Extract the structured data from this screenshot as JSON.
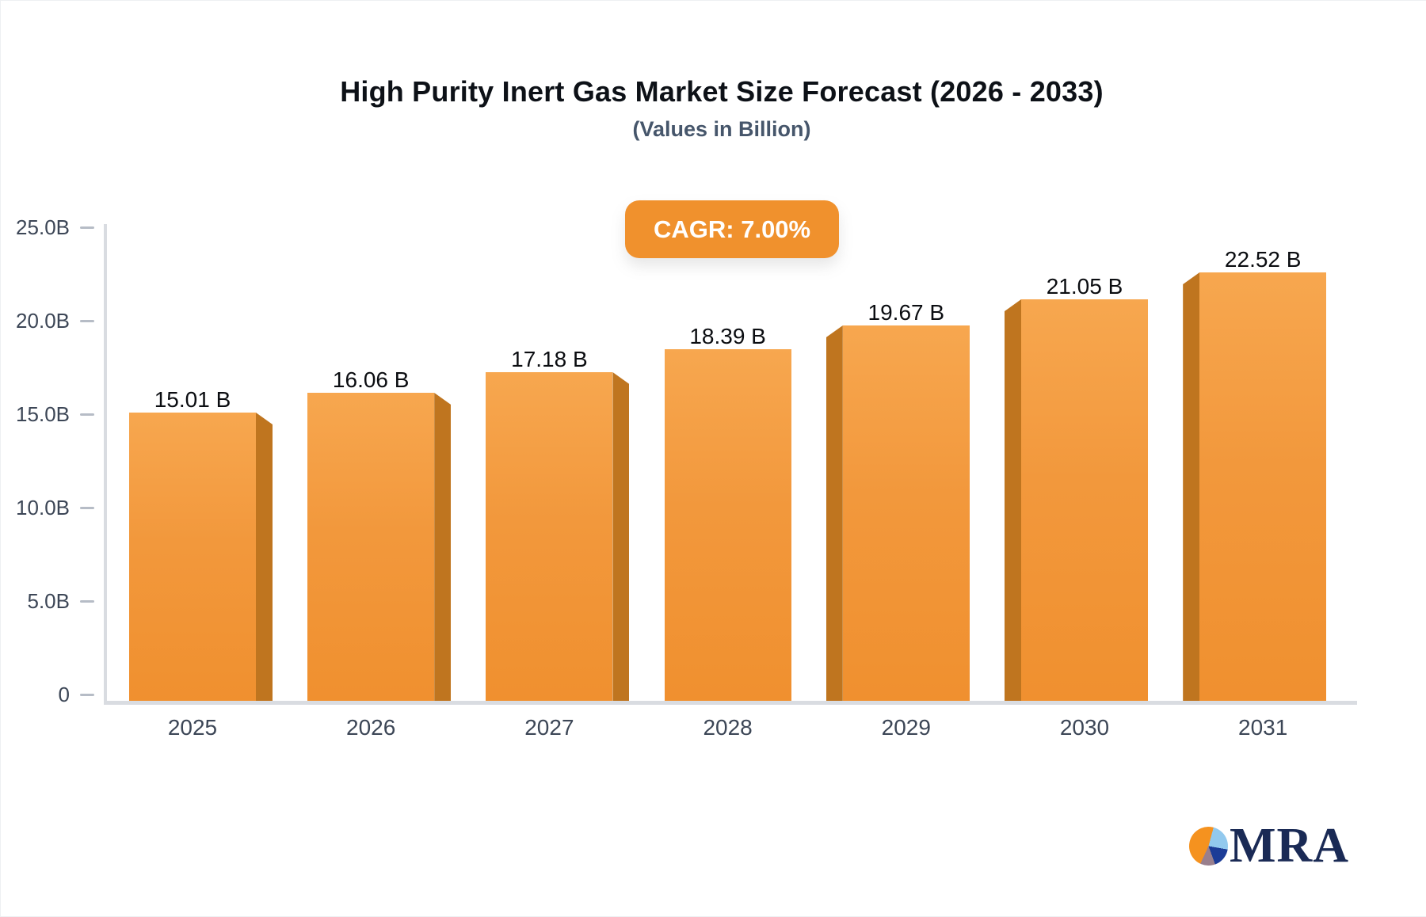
{
  "header": {
    "title": "High Purity Inert Gas Market Size Forecast (2026 - 2033)",
    "subtitle": "(Values in Billion)"
  },
  "badge": {
    "label": "CAGR: 7.00%",
    "background": "#F0912D",
    "text_color": "#FFFFFF"
  },
  "chart_data": {
    "type": "bar",
    "title": "High Purity Inert Gas Market Size Forecast (2026 - 2033)",
    "subtitle": "(Values in Billion)",
    "categories": [
      "2025",
      "2026",
      "2027",
      "2028",
      "2029",
      "2030",
      "2031"
    ],
    "values": [
      15.01,
      16.06,
      17.18,
      18.39,
      19.67,
      21.05,
      22.52
    ],
    "value_labels": [
      "15.01 B",
      "16.06 B",
      "17.18 B",
      "18.39 B",
      "19.67 B",
      "21.05 B",
      "22.52 B"
    ],
    "xlabel": "",
    "ylabel": "",
    "ylim": [
      0,
      25
    ],
    "yticks": [
      {
        "value": 0,
        "label": "0"
      },
      {
        "value": 5,
        "label": "5.0B"
      },
      {
        "value": 10,
        "label": "10.0B"
      },
      {
        "value": 15,
        "label": "15.0B"
      },
      {
        "value": 20,
        "label": "20.0B"
      },
      {
        "value": 25,
        "label": "25.0B"
      }
    ],
    "grid": false,
    "legend": "none",
    "bar_3d_sides": [
      "right",
      "right",
      "right",
      "none",
      "left",
      "left",
      "left"
    ],
    "colors": {
      "bar_top": "#F7A74F",
      "bar_mid": "#F2983C",
      "bar_bottom": "#F0902F",
      "bar_side": "#BF751F",
      "axis_line": "#D9DCE1",
      "tick_dash": "#B6BCC6",
      "axis_text": "#3C4656",
      "value_text": "#0B0D11"
    }
  },
  "logo": {
    "text": "MRA",
    "text_color": "#1A2A55",
    "pie_colors": {
      "orange": "#F5921F",
      "light_blue": "#92C9EE",
      "navy": "#1C3C97",
      "mauve": "#997F8D"
    }
  }
}
